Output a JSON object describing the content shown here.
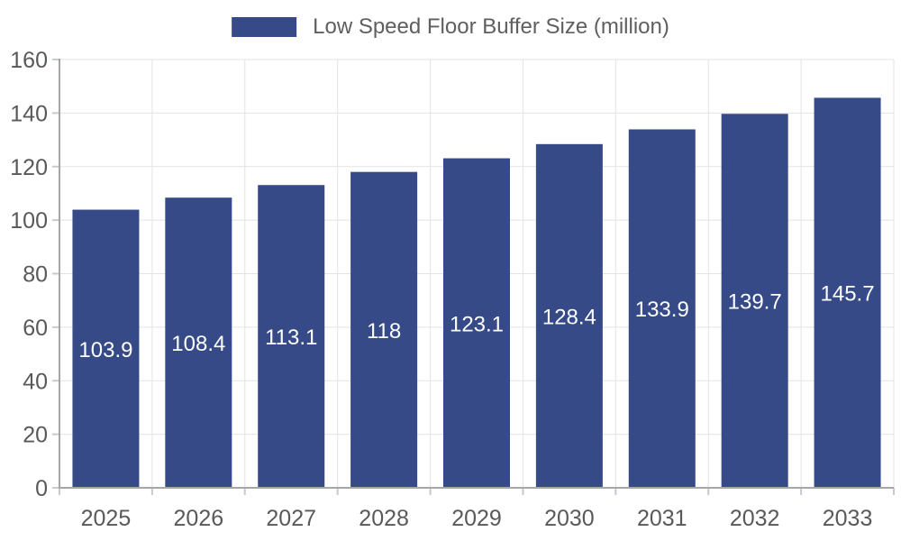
{
  "chart_data": {
    "type": "bar",
    "title": "",
    "legend": "Low Speed Floor Buffer Size (million)",
    "legend_position": "top-center",
    "categories": [
      "2025",
      "2026",
      "2027",
      "2028",
      "2029",
      "2030",
      "2031",
      "2032",
      "2033"
    ],
    "series": [
      {
        "name": "Low Speed Floor Buffer Size (million)",
        "values": [
          103.9,
          108.4,
          113.1,
          118,
          123.1,
          128.4,
          133.9,
          139.7,
          145.7
        ]
      }
    ],
    "value_labels": [
      "103.9",
      "108.4",
      "113.1",
      "118",
      "123.1",
      "128.4",
      "133.9",
      "139.7",
      "145.7"
    ],
    "xlabel": "",
    "ylabel": "",
    "ylim": [
      0,
      160
    ],
    "ytick_step": 20,
    "yticks": [
      "0",
      "20",
      "40",
      "60",
      "80",
      "100",
      "120",
      "140",
      "160"
    ],
    "grid": true,
    "colors": {
      "bar": "#354a87",
      "value_label": "#ffffff",
      "axis_text": "#595959",
      "legend_text": "#5f5f5f",
      "grid_line": "#e3e3e3",
      "axis_line": "#a6a6a6",
      "tick_mark": "#c4c9d4",
      "background": "#ffffff"
    }
  }
}
